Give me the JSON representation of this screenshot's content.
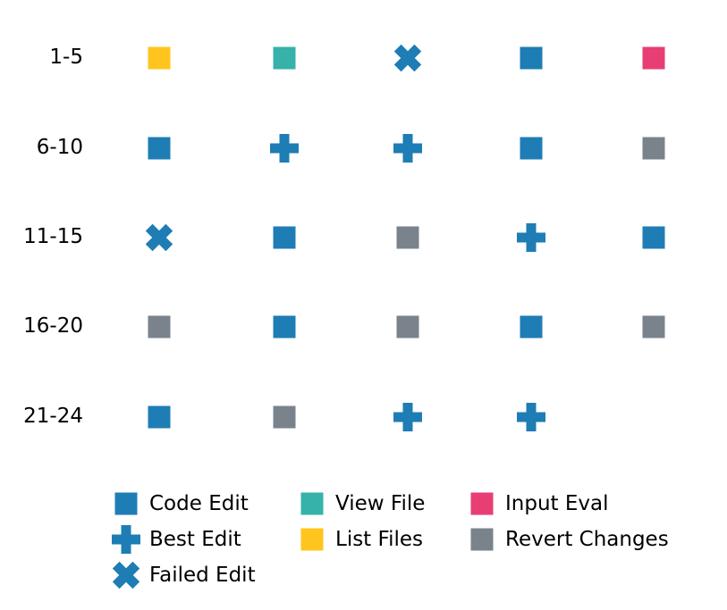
{
  "chart_data": {
    "type": "scatter",
    "title": "",
    "xlabel": "",
    "ylabel": "",
    "description": "Categorical grid of tool-call markers: each row is a range of call numbers (5 per row), each cell shows the tool used for that call.",
    "grid": false,
    "rows": [
      {
        "label": "1-5",
        "tools": [
          "List Files",
          "View File",
          "Failed Edit",
          "Code Edit",
          "Input Eval"
        ]
      },
      {
        "label": "6-10",
        "tools": [
          "Code Edit",
          "Best Edit",
          "Best Edit",
          "Code Edit",
          "Revert Changes"
        ]
      },
      {
        "label": "11-15",
        "tools": [
          "Failed Edit",
          "Code Edit",
          "Revert Changes",
          "Best Edit",
          "Code Edit"
        ]
      },
      {
        "label": "16-20",
        "tools": [
          "Revert Changes",
          "Code Edit",
          "Revert Changes",
          "Code Edit",
          "Revert Changes"
        ]
      },
      {
        "label": "21-24",
        "tools": [
          "Code Edit",
          "Revert Changes",
          "Best Edit",
          "Best Edit"
        ]
      }
    ],
    "markers": {
      "Code Edit": {
        "shape": "square",
        "color": "#1E7DB4"
      },
      "Best Edit": {
        "shape": "plus",
        "color": "#1E7DB4"
      },
      "Failed Edit": {
        "shape": "x",
        "color": "#1E7DB4"
      },
      "View File": {
        "shape": "square",
        "color": "#36B2AA"
      },
      "List Files": {
        "shape": "square",
        "color": "#FFC41E"
      },
      "Input Eval": {
        "shape": "square",
        "color": "#E73E73"
      },
      "Revert Changes": {
        "shape": "square",
        "color": "#7A838C"
      }
    },
    "legend": {
      "position": "lower center",
      "columns": [
        [
          "Code Edit",
          "Best Edit",
          "Failed Edit"
        ],
        [
          "View File",
          "List Files"
        ],
        [
          "Input Eval",
          "Revert Changes"
        ]
      ]
    },
    "marker_edge_color": "#ffffff",
    "text_color": "#000000",
    "background_color": "#ffffff"
  }
}
